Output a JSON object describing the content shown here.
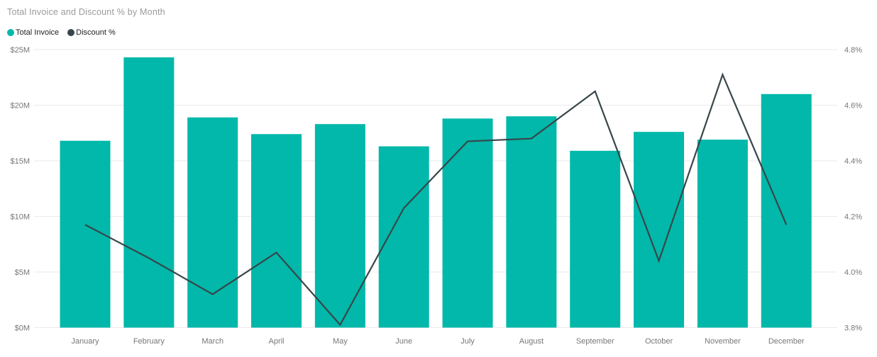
{
  "chart": {
    "title": "Total Invoice and Discount % by Month"
  },
  "chart_data": {
    "type": "combo-bar-line",
    "title": "Total Invoice and Discount % by Month",
    "categories": [
      "January",
      "February",
      "March",
      "April",
      "May",
      "June",
      "July",
      "August",
      "September",
      "October",
      "November",
      "December"
    ],
    "series": [
      {
        "name": "Total Invoice",
        "type": "bar",
        "axis": "left",
        "unit": "$M",
        "color": "#01B8AA",
        "values": [
          16.8,
          24.3,
          18.9,
          17.4,
          18.3,
          16.3,
          18.8,
          19.0,
          15.9,
          17.6,
          16.9,
          21.0
        ]
      },
      {
        "name": "Discount %",
        "type": "line",
        "axis": "right",
        "unit": "%",
        "color": "#374649",
        "values": [
          4.17,
          4.05,
          3.92,
          4.07,
          3.81,
          4.23,
          4.47,
          4.48,
          4.65,
          4.04,
          4.71,
          4.17
        ]
      }
    ],
    "left_axis": {
      "min": 0,
      "max": 25,
      "tick_labels": [
        "$0M",
        "$5M",
        "$10M",
        "$15M",
        "$20M",
        "$25M"
      ]
    },
    "right_axis": {
      "min": 3.8,
      "max": 4.8,
      "tick_labels": [
        "3.8%",
        "4.0%",
        "4.2%",
        "4.4%",
        "4.6%",
        "4.8%"
      ]
    },
    "grid": true,
    "legend_position": "top-left",
    "colors": {
      "grid": "#e9e9e9",
      "axis_label": "#777777",
      "title": "#9a9a9a",
      "legend_text": "#212121",
      "background": "#ffffff"
    }
  }
}
